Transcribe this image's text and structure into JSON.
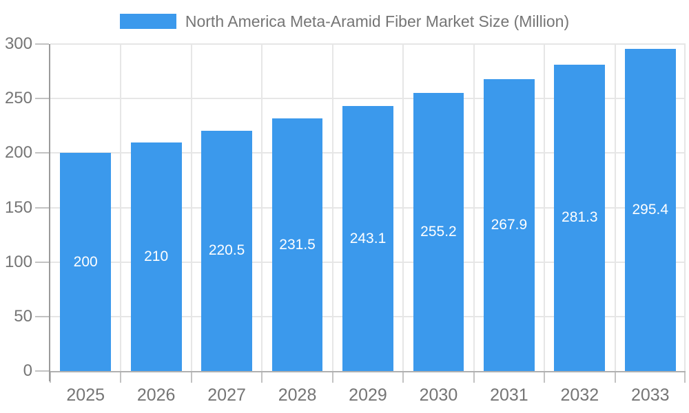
{
  "chart_data": {
    "type": "bar",
    "title": "North America Meta-Aramid Fiber Market Size (Million)",
    "legend": {
      "position": "top",
      "label": "North America Meta-Aramid Fiber Market Size (Million)"
    },
    "categories": [
      "2025",
      "2026",
      "2027",
      "2028",
      "2029",
      "2030",
      "2031",
      "2032",
      "2033"
    ],
    "values": [
      200,
      210,
      220.5,
      231.5,
      243.1,
      255.2,
      267.9,
      281.3,
      295.4
    ],
    "bar_labels": [
      "200",
      "210",
      "220.5",
      "231.5",
      "243.1",
      "255.2",
      "267.9",
      "281.3",
      "295.4"
    ],
    "xlabel": "",
    "ylabel": "",
    "ylim": [
      0,
      300
    ],
    "yticks": [
      0,
      50,
      100,
      150,
      200,
      250,
      300
    ],
    "grid": true,
    "colors": {
      "bar": "#3b99ec",
      "bar_value_text": "#ffffff",
      "axis_text": "#757575",
      "grid_line": "#e6e6e6",
      "axis_line": "#9a9a9a"
    }
  }
}
